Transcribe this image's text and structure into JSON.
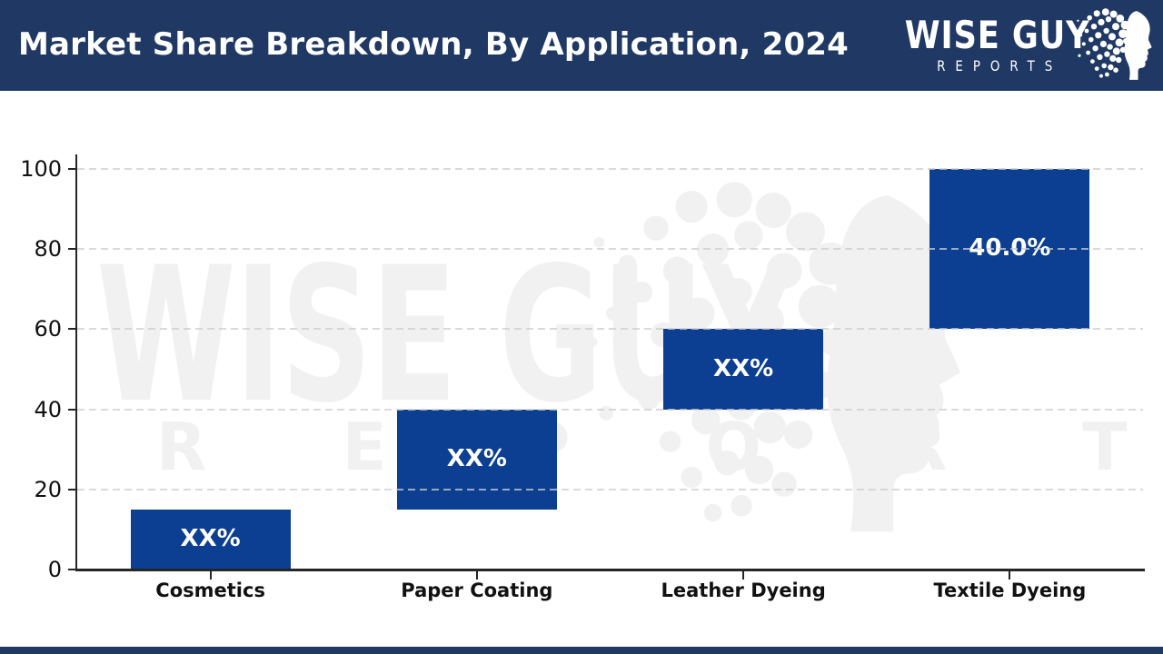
{
  "header": {
    "title": "Market Share Breakdown, By Application, 2024",
    "logo_word": "WISE GUY",
    "logo_sub": "REPORTS"
  },
  "watermark": {
    "word": "WISE GUY",
    "sub": "R E P O R T S"
  },
  "chart_data": {
    "type": "bar",
    "subtype": "waterfall",
    "title": "Market Share Breakdown, By Application, 2024",
    "categories": [
      "Cosmetics",
      "Paper Coating",
      "Leather Dyeing",
      "Textile Dyeing"
    ],
    "segments": [
      {
        "category": "Cosmetics",
        "start": 0,
        "end": 15,
        "label": "XX%"
      },
      {
        "category": "Paper Coating",
        "start": 15,
        "end": 40,
        "label": "XX%"
      },
      {
        "category": "Leather Dyeing",
        "start": 40,
        "end": 60,
        "label": "XX%"
      },
      {
        "category": "Textile Dyeing",
        "start": 60,
        "end": 100,
        "label": "40.0%"
      }
    ],
    "increments": [
      15,
      25,
      20,
      40
    ],
    "xlabel": "",
    "ylabel": "",
    "ylim": [
      0,
      100
    ],
    "yticks": [
      0,
      20,
      40,
      60,
      80,
      100
    ],
    "grid": true,
    "grid_style": "dashed",
    "legend": "none",
    "colors": {
      "bar": "#0c3f92",
      "bar_label": "#ffffff",
      "grid": "#d5d5d5",
      "axis": "#262626",
      "header_bg": "#1f3864",
      "watermark": "#f1f1f2",
      "page_bg": "#ffffff"
    }
  }
}
